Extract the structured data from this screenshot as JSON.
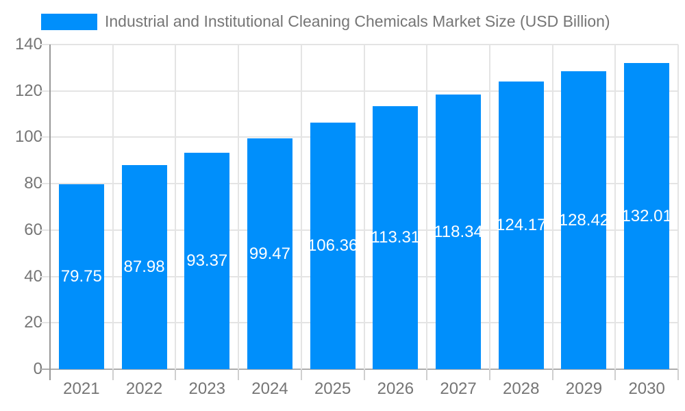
{
  "legend": {
    "label": "Industrial and Institutional Cleaning Chemicals Market Size (USD Billion)"
  },
  "chart_data": {
    "type": "bar",
    "title": "Industrial and Institutional Cleaning Chemicals Market Size (USD Billion)",
    "categories": [
      "2021",
      "2022",
      "2023",
      "2024",
      "2025",
      "2026",
      "2027",
      "2028",
      "2029",
      "2030"
    ],
    "values": [
      79.75,
      87.98,
      93.37,
      99.47,
      106.36,
      113.31,
      118.34,
      124.17,
      128.42,
      132.01
    ],
    "xlabel": "",
    "ylabel": "",
    "ylim": [
      0,
      140
    ],
    "yticks": [
      0,
      20,
      40,
      60,
      80,
      100,
      120,
      140
    ],
    "grid": true,
    "legend_position": "top-left",
    "value_labels_inside_bars": true,
    "colors": {
      "bar": "#008FFB",
      "value_label": "#FFFFFF",
      "axis_text": "#757575",
      "gridline": "#E4E4E4",
      "axis_line": "#979797",
      "baseline": "#ADADAD",
      "tick": "#CFCFCF"
    }
  }
}
